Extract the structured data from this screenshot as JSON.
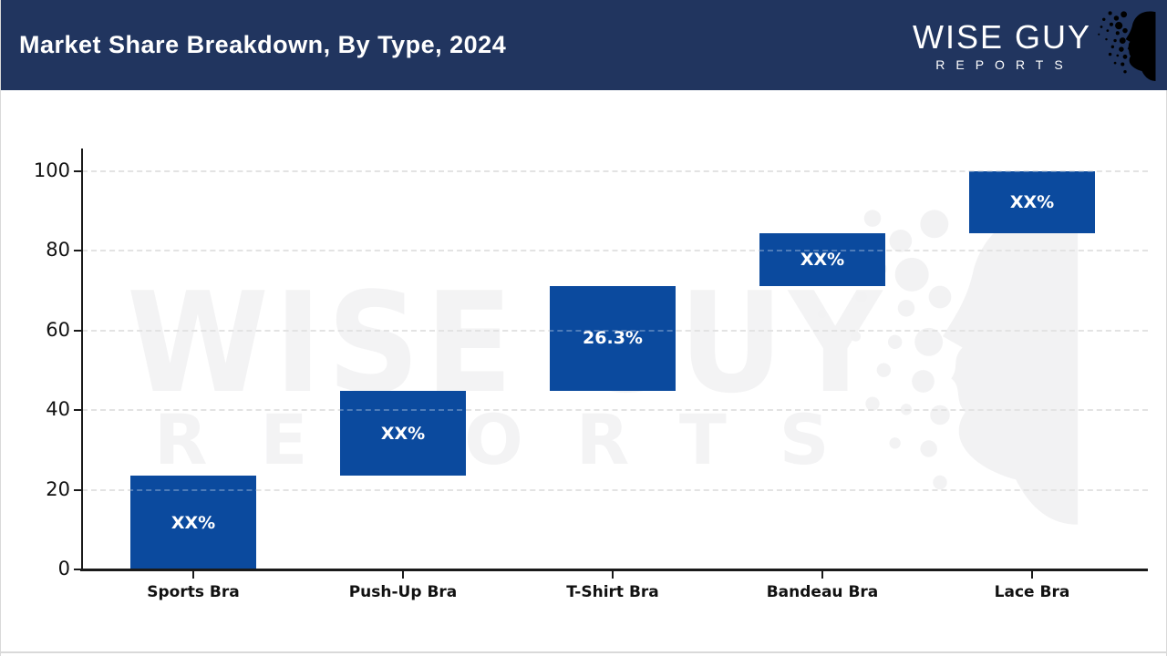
{
  "header": {
    "title": "Market Share Breakdown, By Type, 2024",
    "logo": {
      "line1": "WISE GUY",
      "line2": "REPORTS"
    }
  },
  "watermark": {
    "line1": "WISE GUY",
    "line2": "REPORTS"
  },
  "colors": {
    "header_bg": "#21355f",
    "bar": "#0b4a9e",
    "grid": "#d8d8d8",
    "axis": "#1a1a1a"
  },
  "chart_data": {
    "type": "bar",
    "subtype": "waterfall",
    "title": "Market Share Breakdown, By Type, 2024",
    "xlabel": "",
    "ylabel": "",
    "categories": [
      "Sports Bra",
      "Push-Up Bra",
      "T-Shirt Bra",
      "Bandeau Bra",
      "Lace Bra"
    ],
    "segments": [
      {
        "category": "Sports Bra",
        "label": "XX%",
        "start": 0,
        "end": 23.5
      },
      {
        "category": "Push-Up Bra",
        "label": "XX%",
        "start": 23.5,
        "end": 44.8
      },
      {
        "category": "T-Shirt Bra",
        "label": "26.3%",
        "start": 44.8,
        "end": 71.1
      },
      {
        "category": "Bandeau Bra",
        "label": "XX%",
        "start": 71.1,
        "end": 84.3
      },
      {
        "category": "Lace Bra",
        "label": "XX%",
        "start": 84.3,
        "end": 100
      }
    ],
    "yticks": [
      0,
      20,
      40,
      60,
      80,
      100
    ],
    "ylim": [
      0,
      105.6
    ],
    "grid": "dashed-horizontal",
    "legend": "none",
    "bar_value_labels_inside": true
  }
}
